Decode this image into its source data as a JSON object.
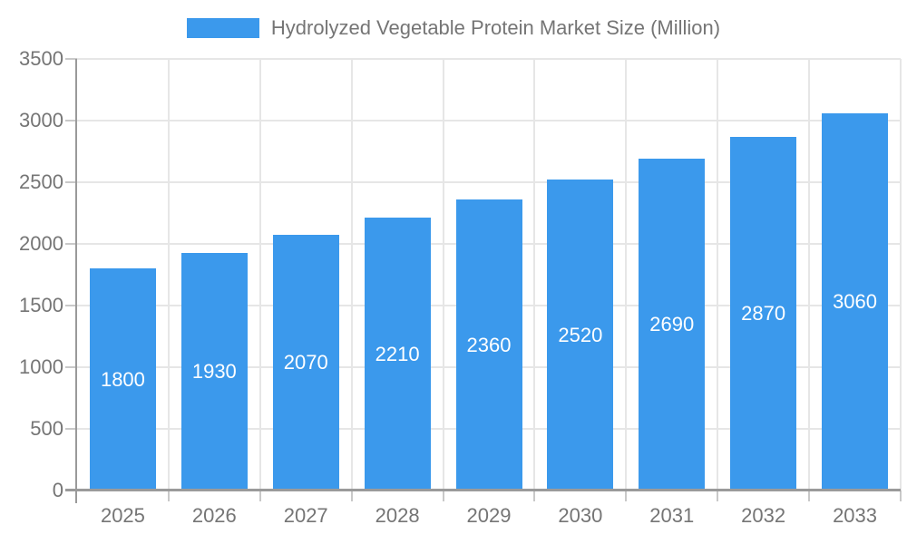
{
  "chart_data": {
    "type": "bar",
    "title": "Hydrolyzed Vegetable Protein Market Size (Million)",
    "categories": [
      "2025",
      "2026",
      "2027",
      "2028",
      "2029",
      "2030",
      "2031",
      "2032",
      "2033"
    ],
    "series": [
      {
        "name": "Hydrolyzed Vegetable Protein Market Size (Million)",
        "values": [
          1800,
          1930,
          2070,
          2210,
          2360,
          2520,
          2690,
          2870,
          3060
        ]
      }
    ],
    "xlabel": "",
    "ylabel": "",
    "ylim": [
      0,
      3500
    ],
    "yticks": [
      0,
      500,
      1000,
      1500,
      2000,
      2500,
      3000,
      3500
    ],
    "grid": true,
    "legend_position": "top",
    "colors": {
      "bar": "#3b99ec",
      "bar_value_label": "#ffffff",
      "axis_text": "#757575",
      "gridline": "#e6e6e6",
      "axis_line": "#9a9a9a"
    }
  },
  "legend": {
    "label": "Hydrolyzed Vegetable Protein Market Size (Million)"
  }
}
